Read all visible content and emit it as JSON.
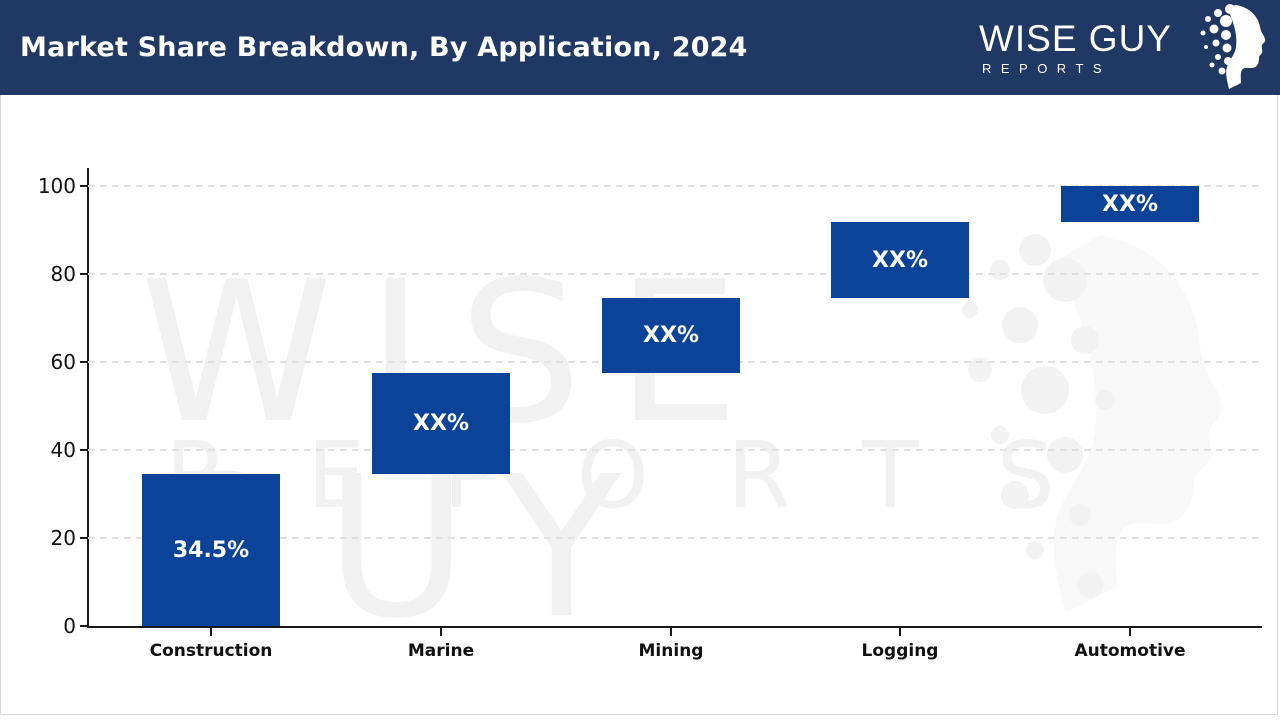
{
  "header": {
    "title": "Market Share Breakdown, By Application, 2024",
    "logo": {
      "line1": "WISE GUY",
      "line2": "REPORTS"
    }
  },
  "watermark": {
    "line1": "WISE GUY",
    "line2": "REPORTS"
  },
  "chart_data": {
    "type": "bar",
    "subtype": "waterfall",
    "title": "Market Share Breakdown, By Application, 2024",
    "xlabel": "",
    "ylabel": "",
    "categories": [
      "Construction",
      "Marine",
      "Mining",
      "Logging",
      "Automotive"
    ],
    "series": [
      {
        "name": "Market Share (%)",
        "segments": [
          {
            "category": "Construction",
            "start": 0,
            "end": 34.5,
            "label": "34.5%"
          },
          {
            "category": "Marine",
            "start": 34.5,
            "end": 57.5,
            "label": "XX%"
          },
          {
            "category": "Mining",
            "start": 57.5,
            "end": 74.5,
            "label": "XX%"
          },
          {
            "category": "Logging",
            "start": 74.5,
            "end": 91.8,
            "label": "XX%"
          },
          {
            "category": "Automotive",
            "start": 91.8,
            "end": 100,
            "label": "XX%"
          }
        ]
      }
    ],
    "ylim": [
      0,
      105
    ],
    "yticks": [
      0,
      20,
      40,
      60,
      80,
      100
    ],
    "grid": "horizontal-dashed",
    "legend": "none",
    "bar_color": "#0b4398",
    "bar_label_color": "#ffffff"
  },
  "colors": {
    "header_bg": "#203864",
    "bar": "#0b4398",
    "axis": "#1a1a1a",
    "grid": "#e0e0e0",
    "page_bg": "#ffffff",
    "watermark": "#f1f1f1"
  }
}
